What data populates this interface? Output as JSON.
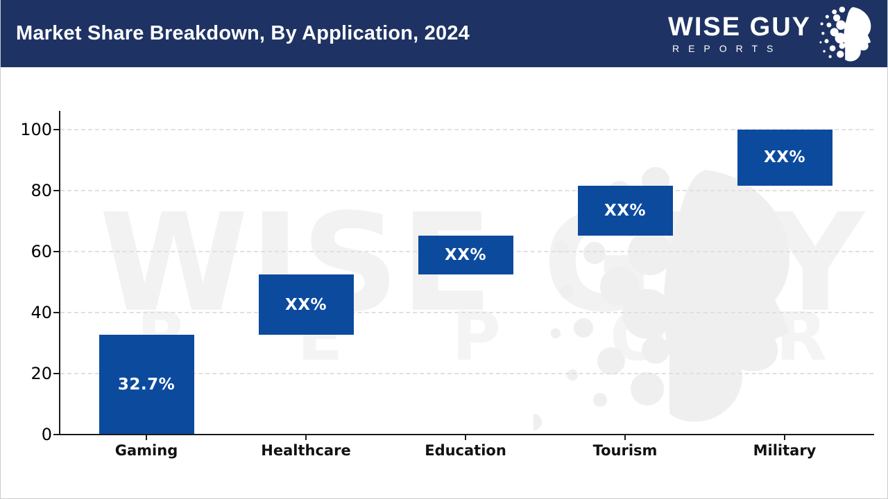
{
  "page": {
    "background": "#ffffff",
    "border_color": "#cccccc"
  },
  "header": {
    "background": "#1e3363",
    "title": "Market Share Breakdown, By Application, 2024",
    "logo": {
      "line1": "WISE GUY",
      "line2": "REPORTS",
      "icon": "dotted-head-profile-icon"
    }
  },
  "watermark": {
    "line1": "WISE GUY",
    "line2": "R E P O R T S"
  },
  "chart_data": {
    "type": "bar",
    "subtype": "waterfall-floating-bars",
    "title": "Market Share Breakdown, By Application, 2024",
    "categories": [
      "Gaming",
      "Healthcare",
      "Education",
      "Tourism",
      "Military"
    ],
    "segments": [
      {
        "category": "Gaming",
        "start": 0,
        "end": 32.7,
        "label": "32.7%",
        "value_estimate": 32.7
      },
      {
        "category": "Healthcare",
        "start": 32.7,
        "end": 52.5,
        "label": "XX%",
        "value_estimate": 19.8
      },
      {
        "category": "Education",
        "start": 52.5,
        "end": 65.2,
        "label": "XX%",
        "value_estimate": 12.7
      },
      {
        "category": "Tourism",
        "start": 65.2,
        "end": 81.6,
        "label": "XX%",
        "value_estimate": 16.4
      },
      {
        "category": "Military",
        "start": 81.6,
        "end": 100,
        "label": "XX%",
        "value_estimate": 18.4
      }
    ],
    "ylim": [
      0,
      105
    ],
    "yticks": [
      0,
      20,
      40,
      60,
      80,
      100
    ],
    "xlabel": "",
    "ylabel": "",
    "grid": "horizontal-dashed",
    "legend": false,
    "bar_color": "#0c4a9e",
    "bar_label_color": "#ffffff",
    "axis_color": "#1a1a1a",
    "grid_color": "#e0e0e0"
  }
}
